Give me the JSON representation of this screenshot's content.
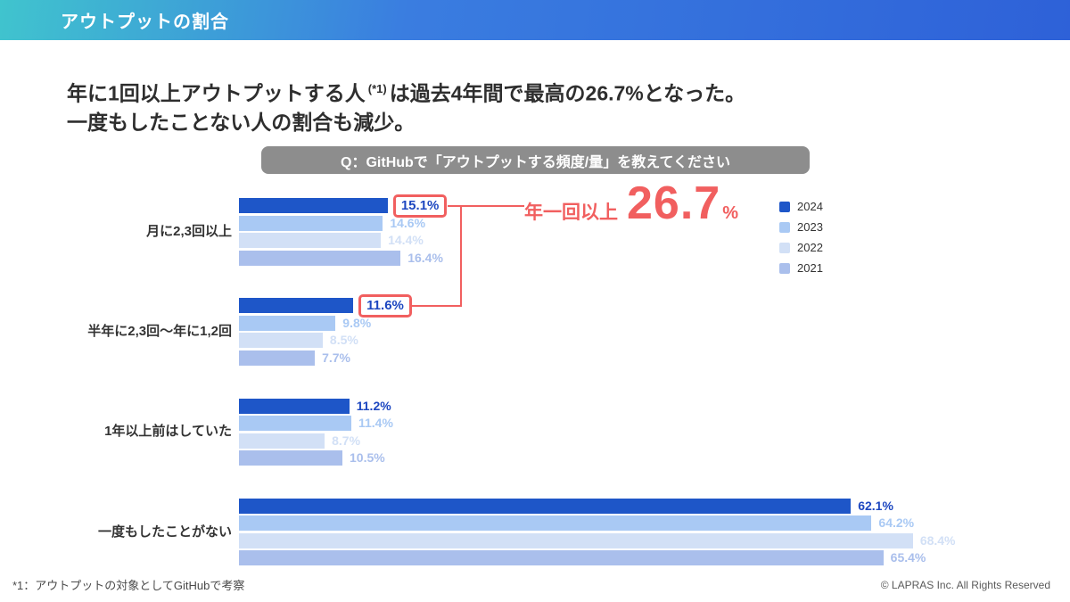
{
  "header": {
    "title": "アウトプットの割合"
  },
  "heading": {
    "line1_pre": "年に1回以上アウトプットする人",
    "line1_sup": "(*1)",
    "line1_post": "は過去4年間で最高の26.7%となった。",
    "line2": "一度もしたことない人の割合も減少。"
  },
  "question": {
    "label": "Q：GitHubで「アウトプットする頻度/量」を教えてください"
  },
  "chart_data": {
    "type": "bar",
    "orientation": "horizontal",
    "title": "Q：GitHubで「アウトプットする頻度/量」を教えてください",
    "categories": [
      "月に2,3回以上",
      "半年に2,3回〜年に1,2回",
      "1年以上前はしていた",
      "一度もしたことがない"
    ],
    "series": [
      {
        "name": "2024",
        "color": "#1e56c8",
        "label_color": "#1d47c0",
        "values": [
          15.1,
          11.6,
          11.2,
          62.1
        ]
      },
      {
        "name": "2023",
        "color": "#a9c9f4",
        "label_color": "#a9c9f4",
        "values": [
          14.6,
          9.8,
          11.4,
          64.2
        ]
      },
      {
        "name": "2022",
        "color": "#d2e0f6",
        "label_color": "#d2e0f6",
        "values": [
          14.4,
          8.5,
          8.7,
          68.4
        ]
      },
      {
        "name": "2021",
        "color": "#aabfec",
        "label_color": "#aabfec",
        "values": [
          16.4,
          7.7,
          10.5,
          65.4
        ]
      }
    ],
    "value_suffix": "%",
    "highlighted": [
      {
        "series": "2024",
        "category_index": 0
      },
      {
        "series": "2024",
        "category_index": 1
      }
    ],
    "xlim": [
      0,
      100
    ],
    "grid": false,
    "legend_position": "right"
  },
  "legend": {
    "items": [
      {
        "label": "2024",
        "color": "#1e56c8"
      },
      {
        "label": "2023",
        "color": "#a9c9f4"
      },
      {
        "label": "2022",
        "color": "#d2e0f6"
      },
      {
        "label": "2021",
        "color": "#aabfec"
      }
    ]
  },
  "annotation": {
    "label": "年一回以上",
    "value": "26.7",
    "unit": "%"
  },
  "footer": {
    "note": "*1：アウトプットの対象としてGitHubで考察",
    "copyright": "© LAPRAS Inc. All Rights Reserved"
  },
  "colors": {
    "accent_red": "#f15f5f",
    "header_gradient_start": "#40c4ce",
    "header_gradient_end": "#2e61d8",
    "badge_gray": "#8d8d8d"
  }
}
